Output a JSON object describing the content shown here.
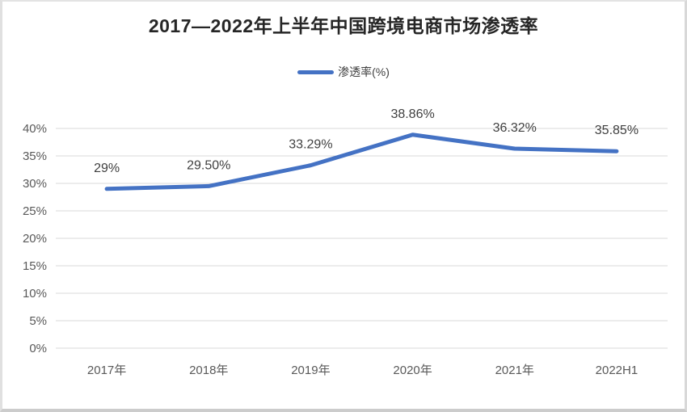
{
  "chart_data": {
    "type": "line",
    "title": "2017—2022年上半年中国跨境电商市场渗透率",
    "legend": {
      "label": "渗透率(%)",
      "position": "top"
    },
    "categories": [
      "2017年",
      "2018年",
      "2019年",
      "2020年",
      "2021年",
      "2022H1"
    ],
    "series": [
      {
        "name": "渗透率(%)",
        "color": "#4472C4",
        "values": [
          29,
          29.5,
          33.29,
          38.86,
          36.32,
          35.85
        ],
        "data_labels": [
          "29%",
          "29.50%",
          "33.29%",
          "38.86%",
          "36.32%",
          "35.85%"
        ]
      }
    ],
    "xlabel": "",
    "ylabel": "",
    "ylim": [
      0,
      40
    ],
    "ytick_step": 5,
    "ytick_labels": [
      "0%",
      "5%",
      "10%",
      "15%",
      "20%",
      "25%",
      "30%",
      "35%",
      "40%"
    ],
    "grid": true,
    "colors": {
      "line": "#4472C4",
      "gridline": "#D9D9D9",
      "axis_text": "#595959",
      "data_label_text": "#3F3F3F",
      "title_text": "#262626",
      "background": "#FFFFFF"
    }
  }
}
